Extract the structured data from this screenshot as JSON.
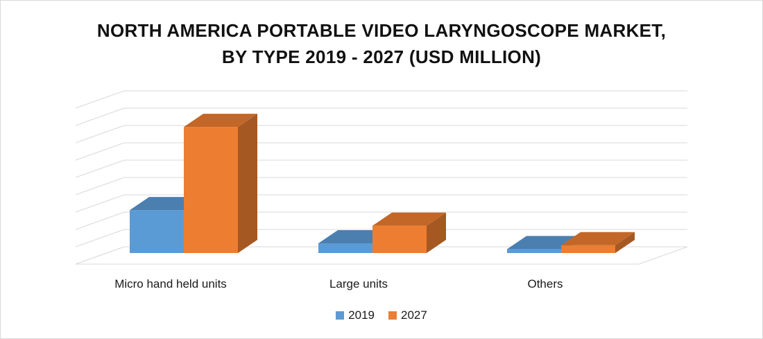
{
  "chart_data": {
    "type": "bar",
    "title_lines": [
      "NORTH AMERICA PORTABLE VIDEO LARYNGOSCOPE MARKET,",
      "BY TYPE 2019 - 2027 (USD MILLION)"
    ],
    "categories": [
      "Micro hand held units",
      "Large units",
      "Others"
    ],
    "series": [
      {
        "name": "2019",
        "values": [
          66,
          15,
          6
        ],
        "color": "#5b9bd5"
      },
      {
        "name": "2027",
        "values": [
          194,
          42,
          12
        ],
        "color": "#ed7d31"
      }
    ],
    "ylim": [
      0,
      240
    ],
    "gridlines": true,
    "style": "3d-clustered-column",
    "legend_position": "bottom"
  }
}
